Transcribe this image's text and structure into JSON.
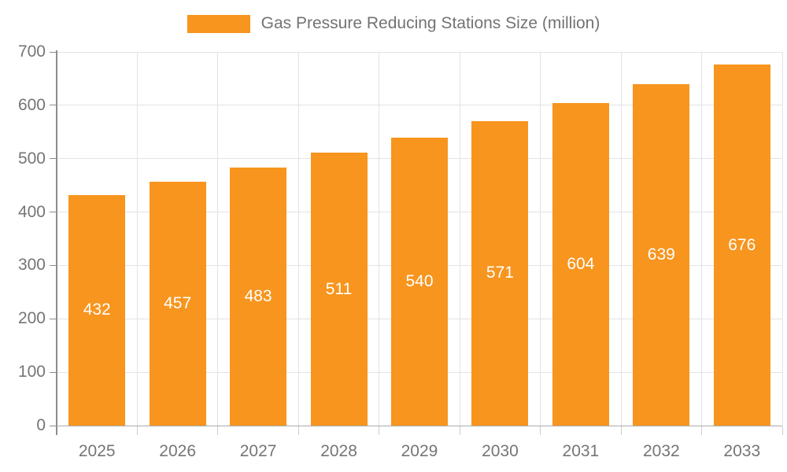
{
  "chart_data": {
    "type": "bar",
    "title": "Gas Pressure Reducing Stations Size (million)",
    "legend_entries": [
      "Gas Pressure Reducing Stations Size (million)"
    ],
    "legend_position": "top",
    "categories": [
      "2025",
      "2026",
      "2027",
      "2028",
      "2029",
      "2030",
      "2031",
      "2032",
      "2033"
    ],
    "values": [
      432,
      457,
      483,
      511,
      540,
      571,
      604,
      639,
      676
    ],
    "xlabel": "",
    "ylabel": "",
    "ylim": [
      0,
      700
    ],
    "ytick_interval": 100,
    "yticks": [
      0,
      100,
      200,
      300,
      400,
      500,
      600,
      700
    ],
    "grid": true,
    "value_labels_position": "inside-center",
    "colors": {
      "bar": "#f7951e",
      "value_label": "#ffffff",
      "axis_text": "#757575",
      "legend_text": "#737373"
    }
  }
}
